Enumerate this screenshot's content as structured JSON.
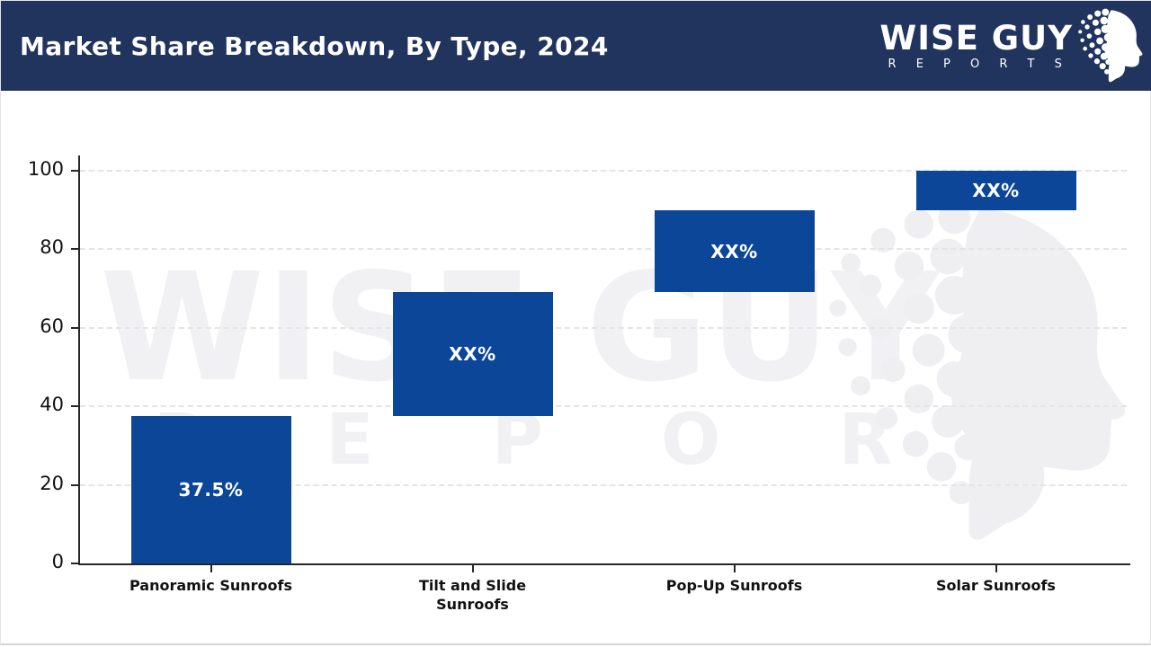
{
  "header": {
    "title": "Market Share Breakdown, By Type, 2024",
    "bg_color": "#21345e",
    "logo": {
      "line1": "WISE GUY",
      "line2": "R E P O R T S"
    }
  },
  "watermark": {
    "line1": "WISE GUY",
    "line2": "R E P O R T S"
  },
  "chart_data": {
    "type": "bar",
    "subtype": "waterfall",
    "title": "Market Share Breakdown, By Type, 2024",
    "xlabel": "",
    "ylabel": "",
    "ylim": [
      0,
      100
    ],
    "yticks": [
      0,
      20,
      40,
      60,
      80,
      100
    ],
    "grid": "horizontal-dashed",
    "legend": "none",
    "bar_color": "#0c4699",
    "bar_label_color": "#ffffff",
    "categories": [
      "Panoramic Sunroofs",
      "Tilt and Slide\nSunroofs",
      "Pop-Up Sunroofs",
      "Solar Sunroofs"
    ],
    "series": [
      {
        "name": "Market Share",
        "segments": [
          {
            "start": 0,
            "end": 37.5,
            "value": 37.5,
            "label": "37.5%"
          },
          {
            "start": 37.5,
            "end": 69,
            "value": 31.5,
            "label": "XX%"
          },
          {
            "start": 69,
            "end": 90,
            "value": 21,
            "label": "XX%"
          },
          {
            "start": 90,
            "end": 100,
            "value": 10,
            "label": "XX%"
          }
        ]
      }
    ]
  }
}
